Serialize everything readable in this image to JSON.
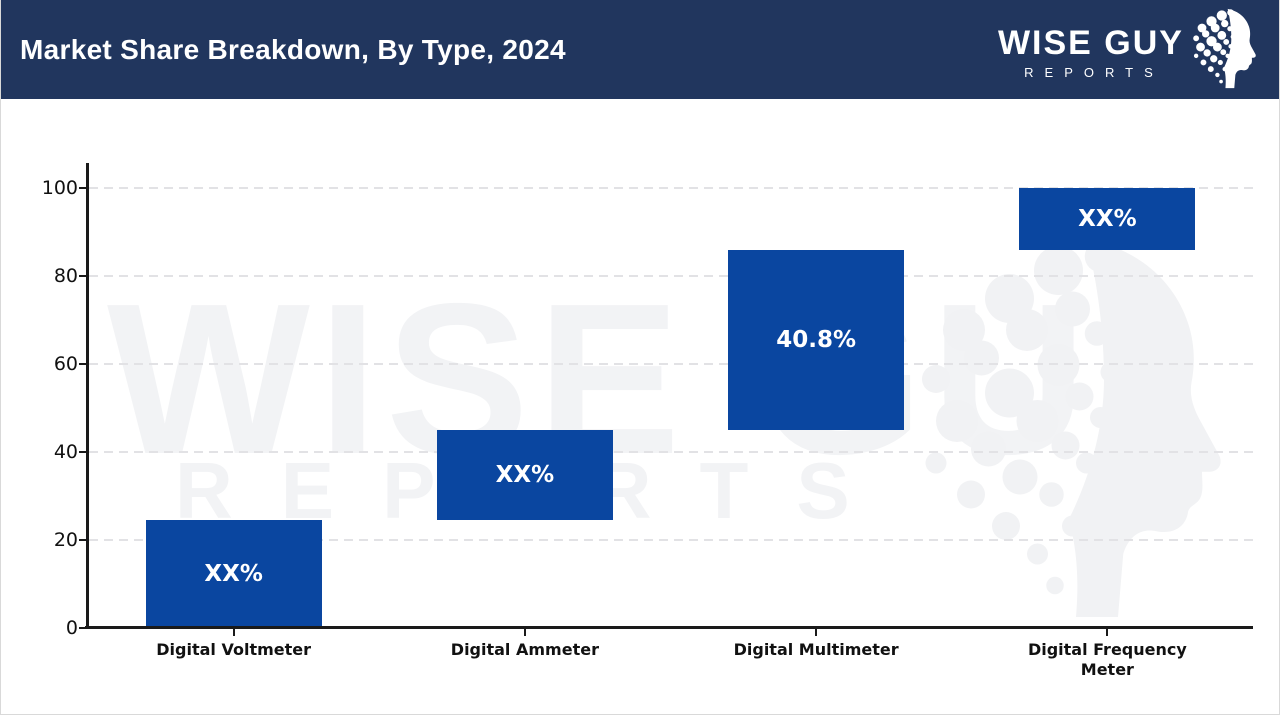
{
  "header": {
    "title": "Market Share Breakdown, By Type, 2024",
    "brand": {
      "line1": "WISE GUY",
      "line2": "REPORTS"
    },
    "background_color": "#21365e"
  },
  "watermark": {
    "line1": "WISE GU",
    "line2": "REPORTS"
  },
  "chart_data": {
    "type": "bar",
    "subtype": "floating-segment-waterfall",
    "title": "Market Share Breakdown, By Type, 2024",
    "categories": [
      "Digital Voltmeter",
      "Digital Ammeter",
      "Digital Multimeter",
      "Digital Frequency Meter"
    ],
    "segments": [
      {
        "category": "Digital Voltmeter",
        "start": 0,
        "end": 24.5,
        "label": "XX%"
      },
      {
        "category": "Digital Ammeter",
        "start": 24.5,
        "end": 45.0,
        "label": "XX%"
      },
      {
        "category": "Digital Multimeter",
        "start": 45.0,
        "end": 85.8,
        "label": "40.8%"
      },
      {
        "category": "Digital Frequency Meter",
        "start": 85.8,
        "end": 100,
        "label": "XX%"
      }
    ],
    "xlabel": "",
    "ylabel": "",
    "ylim": [
      0,
      100
    ],
    "yticks": [
      0,
      20,
      40,
      60,
      80,
      100
    ],
    "grid": "horizontal-dashed",
    "legend": "none",
    "bar_color": "#0a46a0",
    "bar_label_color": "#ffffff",
    "gridline_color": "#e2e2e5",
    "axis_color": "#1a1a1a",
    "watermark_color": "#f2f3f5"
  }
}
